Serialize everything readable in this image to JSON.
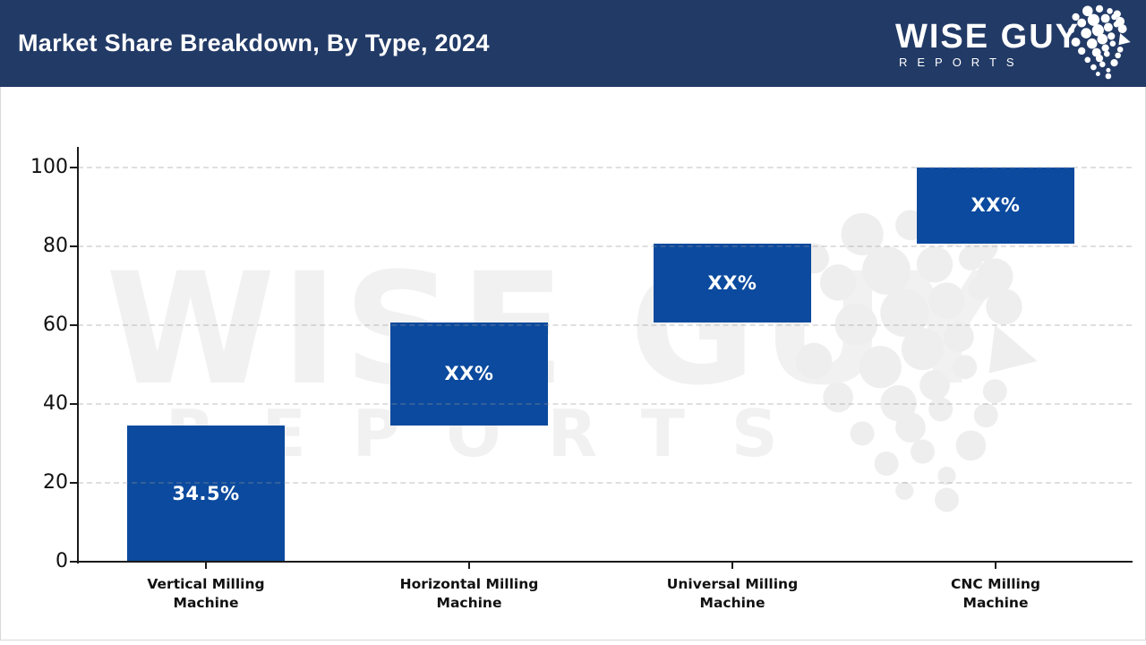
{
  "header": {
    "title": "Market Share Breakdown, By Type, 2024",
    "bg_color": "#223A66",
    "logo": {
      "name": "WISE GUY",
      "subtitle": "REPORTS",
      "icon": "dot-head-profile-icon"
    }
  },
  "watermark": {
    "title": "WISE GUY",
    "subtitle": "REPORTS",
    "color": "#F1F1F1"
  },
  "chart_data": {
    "type": "bar",
    "subtype": "waterfall-floating-bars",
    "title": "Market Share Breakdown, By Type, 2024",
    "categories": [
      "Vertical Milling Machine",
      "Horizontal Milling Machine",
      "Universal Milling Machine",
      "CNC Milling Machine"
    ],
    "category_lines": [
      [
        "Vertical Milling",
        "Machine"
      ],
      [
        "Horizontal Milling",
        "Machine"
      ],
      [
        "Universal Milling",
        "Machine"
      ],
      [
        "CNC Milling",
        "Machine"
      ]
    ],
    "bars": [
      {
        "category": "Vertical Milling Machine",
        "base": 0,
        "top": 34.5,
        "label": "34.5%"
      },
      {
        "category": "Horizontal Milling Machine",
        "base": 34.5,
        "top": 60.5,
        "label": "XX%"
      },
      {
        "category": "Universal Milling Machine",
        "base": 60.5,
        "top": 80.5,
        "label": "XX%"
      },
      {
        "category": "CNC Milling Machine",
        "base": 80.5,
        "top": 100,
        "label": "XX%"
      }
    ],
    "yticks": [
      0,
      20,
      40,
      60,
      80,
      100
    ],
    "ylim": [
      0,
      105
    ],
    "xlabel": "",
    "ylabel": "",
    "bar_color": "#0B4A9E",
    "grid": "horizontal-dashed",
    "legend": "none"
  }
}
